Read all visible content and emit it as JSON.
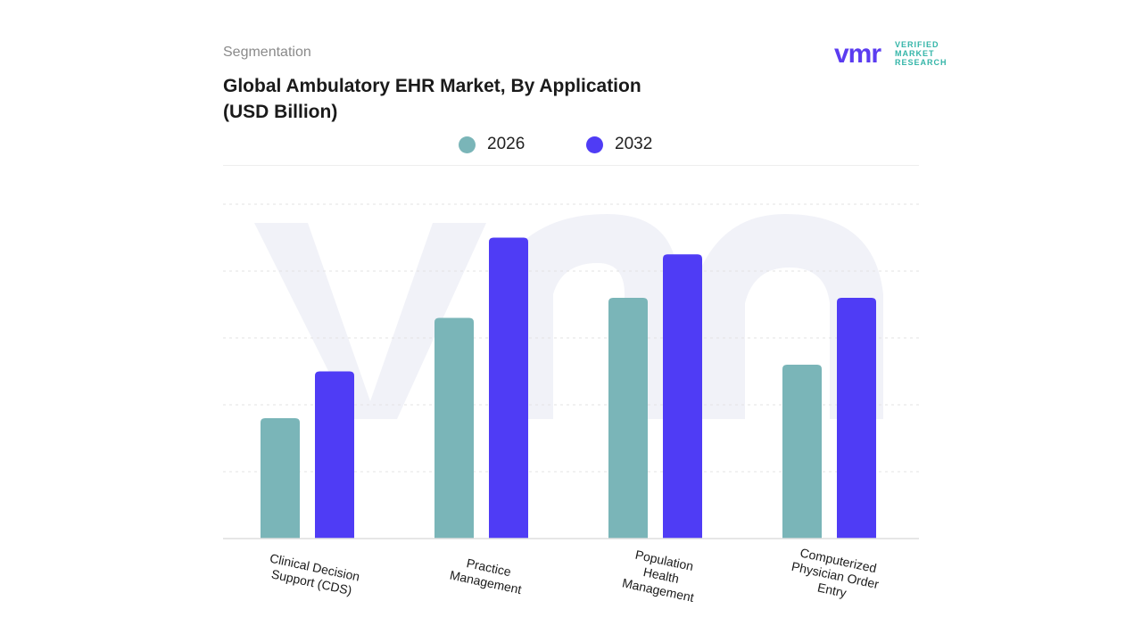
{
  "header": {
    "segmentation": "Segmentation",
    "title_line1": "Global Ambulatory EHR Market, By Application",
    "title_line2": "(USD Billion)"
  },
  "logo": {
    "mark": "vmr",
    "line1": "VERIFIED",
    "line2": "MARKET",
    "line3": "RESEARCH",
    "color_mark": "#5b3cf0",
    "color_text": "#34b5a8"
  },
  "chart_data": {
    "type": "bar",
    "categories": [
      [
        "Clinical Decision",
        "Support  (CDS)"
      ],
      [
        "Practice",
        "Management"
      ],
      [
        "Population",
        "Health",
        "Management"
      ],
      [
        "Computerized",
        "Physician Order",
        "Entry"
      ]
    ],
    "series": [
      {
        "name": "2026",
        "color": "#7ab5b8",
        "values": [
          1.8,
          3.3,
          3.6,
          2.6
        ]
      },
      {
        "name": "2032",
        "color": "#4f3cf5",
        "values": [
          2.5,
          4.5,
          4.25,
          3.6
        ]
      }
    ],
    "ylim": [
      0,
      5
    ],
    "grid": true,
    "legend": "top-center",
    "title": "",
    "xlabel": "",
    "ylabel": ""
  }
}
